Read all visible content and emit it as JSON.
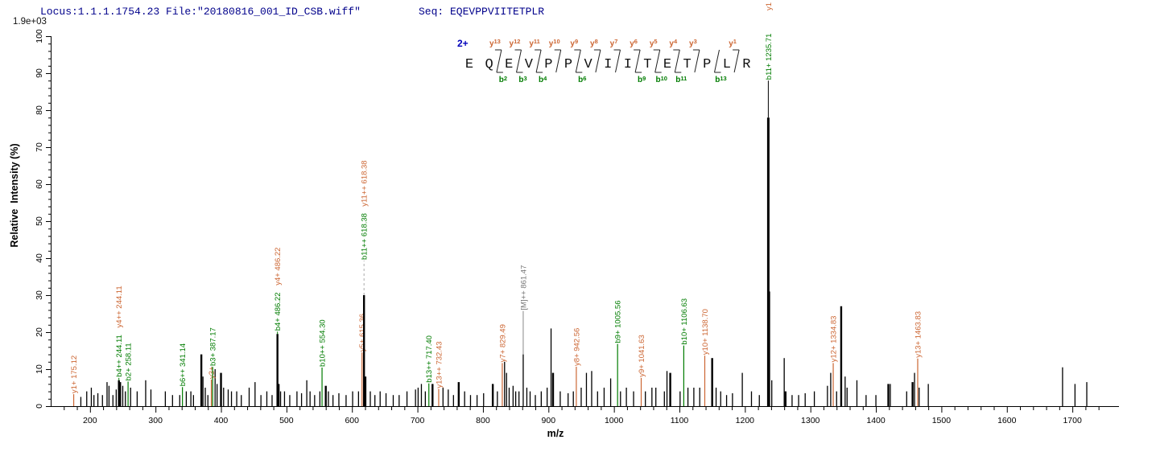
{
  "header": {
    "locus_file": "Locus:1.1.1.1754.23 File:\"20180816_001_ID_CSB.wiff\"",
    "seq_label": "Seq: EQEVPPVIITETPLR",
    "max_intensity": "1.9e+03"
  },
  "colors": {
    "y_ion": "#cc6633",
    "b_ion": "#007c00",
    "precursor": "#777777",
    "peak": "#000000",
    "header_text": "#00008b",
    "charge_text": "#0000bb"
  },
  "sequence": {
    "charge": "2+",
    "residues": [
      "E",
      "Q",
      "E",
      "V",
      "P",
      "P",
      "V",
      "I",
      "I",
      "T",
      "E",
      "T",
      "P",
      "L",
      "R"
    ],
    "y_ions": [
      {
        "label": "y",
        "num": "13",
        "gap": 2
      },
      {
        "label": "y",
        "num": "12",
        "gap": 3
      },
      {
        "label": "y",
        "num": "11",
        "gap": 4
      },
      {
        "label": "y",
        "num": "10",
        "gap": 5
      },
      {
        "label": "y",
        "num": "9",
        "gap": 6
      },
      {
        "label": "y",
        "num": "8",
        "gap": 7
      },
      {
        "label": "y",
        "num": "7",
        "gap": 8
      },
      {
        "label": "y",
        "num": "6",
        "gap": 9
      },
      {
        "label": "y",
        "num": "5",
        "gap": 10
      },
      {
        "label": "y",
        "num": "4",
        "gap": 11
      },
      {
        "label": "y",
        "num": "3",
        "gap": 12
      },
      {
        "label": "y",
        "num": "1",
        "gap": 14
      }
    ],
    "b_ions": [
      {
        "label": "b",
        "num": "2",
        "gap": 2
      },
      {
        "label": "b",
        "num": "3",
        "gap": 3
      },
      {
        "label": "b",
        "num": "4",
        "gap": 4
      },
      {
        "label": "b",
        "num": "6",
        "gap": 6
      },
      {
        "label": "b",
        "num": "9",
        "gap": 9
      },
      {
        "label": "b",
        "num": "10",
        "gap": 10
      },
      {
        "label": "b",
        "num": "11",
        "gap": 11
      },
      {
        "label": "b",
        "num": "13",
        "gap": 13
      }
    ]
  },
  "chart_data": {
    "type": "bar",
    "xlabel": "m/z",
    "ylabel": "Relative  Intensity (%)",
    "xlim": [
      140,
      1765
    ],
    "ylim": [
      0,
      100
    ],
    "x_major_ticks": [
      200,
      300,
      400,
      500,
      600,
      700,
      800,
      900,
      1000,
      1100,
      1200,
      1300,
      1400,
      1500,
      1600,
      1700
    ],
    "x_minor_step": 20,
    "y_major_step": 10,
    "y_minor_step": 2,
    "grid": false,
    "legend": "none",
    "max_intensity_label": "1.9e+03",
    "labeled_peaks": [
      {
        "mz": 175.12,
        "intensity": 1.5,
        "labels": [
          {
            "text": "y1+ 175.12",
            "ion": "y"
          }
        ]
      },
      {
        "mz": 244.11,
        "intensity": 7,
        "w": 2,
        "labels": [
          {
            "text": "b4++ 244.11",
            "ion": "b"
          },
          {
            "text": "y4++ 244.11",
            "ion": "y"
          }
        ]
      },
      {
        "mz": 258.11,
        "intensity": 6,
        "labels": [
          {
            "text": "b2+ 258.11",
            "ion": "b"
          }
        ]
      },
      {
        "mz": 341.14,
        "intensity": 4.5,
        "labels": [
          {
            "text": "b6++ 341.14",
            "ion": "b"
          }
        ]
      },
      {
        "mz": 385.26,
        "intensity": 5,
        "labels": [
          {
            "text": "y3+",
            "ion": "y"
          }
        ]
      },
      {
        "mz": 387.17,
        "intensity": 10,
        "labels": [
          {
            "text": "b3+ 387.17",
            "ion": "b"
          }
        ]
      },
      {
        "mz": 486.22,
        "intensity": 19.5,
        "w": 2,
        "labels": [
          {
            "text": "b4+ 486.22",
            "ion": "b"
          },
          {
            "text": "y4+ 486.22",
            "ion": "y"
          }
        ]
      },
      {
        "mz": 554.3,
        "intensity": 5,
        "labels": [
          {
            "text": "b10++ 554.30",
            "ion": "b"
          }
        ]
      },
      {
        "mz": 615.36,
        "intensity": 8,
        "labels": [
          {
            "text": "y5+ 615.36",
            "ion": "y"
          }
        ]
      },
      {
        "mz": 618.38,
        "intensity": 30,
        "w": 2,
        "labels": [
          {
            "text": "b11++ 618.38",
            "ion": "b"
          },
          {
            "text": "y11++ 618.38",
            "ion": "y"
          }
        ]
      },
      {
        "mz": 717.4,
        "intensity": 5.5,
        "labels": [
          {
            "text": "b13++ 717.40",
            "ion": "b"
          }
        ]
      },
      {
        "mz": 732.43,
        "intensity": 4,
        "labels": [
          {
            "text": "y13++ 732.43",
            "ion": "y"
          }
        ]
      },
      {
        "mz": 829.49,
        "intensity": 11,
        "labels": [
          {
            "text": "y7+ 829.49",
            "ion": "y"
          }
        ]
      },
      {
        "mz": 861.47,
        "intensity": 14,
        "labels": [
          {
            "text": "[M]++ 861.47",
            "ion": "M"
          }
        ]
      },
      {
        "mz": 942.56,
        "intensity": 10,
        "labels": [
          {
            "text": "y8+ 942.56",
            "ion": "y"
          }
        ]
      },
      {
        "mz": 1005.56,
        "intensity": 9,
        "labels": [
          {
            "text": "b9+ 1005.56",
            "ion": "b"
          }
        ]
      },
      {
        "mz": 1041.63,
        "intensity": 7,
        "labels": [
          {
            "text": "y9+ 1041.63",
            "ion": "y"
          }
        ]
      },
      {
        "mz": 1106.63,
        "intensity": 9,
        "labels": [
          {
            "text": "b10+ 1106.63",
            "ion": "b"
          }
        ]
      },
      {
        "mz": 1138.7,
        "intensity": 13,
        "labels": [
          {
            "text": "y10+ 1138.70",
            "ion": "y"
          }
        ]
      },
      {
        "mz": 1235.71,
        "intensity": 78,
        "w": 3,
        "labels": [
          {
            "text": "b11+ 1235.71",
            "ion": "b"
          },
          {
            "text": "y1",
            "ion": "y"
          }
        ]
      },
      {
        "mz": 1334.83,
        "intensity": 11,
        "labels": [
          {
            "text": "y12+ 1334.83",
            "ion": "y"
          }
        ]
      },
      {
        "mz": 1463.83,
        "intensity": 7,
        "labels": [
          {
            "text": "y13+ 1463.83",
            "ion": "y"
          }
        ]
      }
    ],
    "unlabeled_peaks": [
      [
        186,
        2.5
      ],
      [
        195,
        4
      ],
      [
        202,
        5
      ],
      [
        206,
        3
      ],
      [
        212,
        3.5
      ],
      [
        219,
        3
      ],
      [
        226,
        6.5
      ],
      [
        229,
        5.5
      ],
      [
        235,
        3
      ],
      [
        240,
        4.5
      ],
      [
        246,
        6.5,
        2
      ],
      [
        250,
        5.5
      ],
      [
        254,
        4
      ],
      [
        262,
        5
      ],
      [
        272,
        4
      ],
      [
        285,
        7
      ],
      [
        293,
        4.5
      ],
      [
        315,
        4
      ],
      [
        326,
        3
      ],
      [
        337,
        3
      ],
      [
        347,
        4
      ],
      [
        354,
        4
      ],
      [
        358,
        3
      ],
      [
        370,
        14,
        2
      ],
      [
        372.5,
        8
      ],
      [
        376,
        5
      ],
      [
        380,
        3
      ],
      [
        391,
        10
      ],
      [
        394,
        6
      ],
      [
        400,
        9,
        2
      ],
      [
        404,
        5
      ],
      [
        411,
        4.5
      ],
      [
        416,
        4
      ],
      [
        424,
        4
      ],
      [
        431,
        3
      ],
      [
        443,
        5
      ],
      [
        452,
        6.5
      ],
      [
        461,
        3
      ],
      [
        470,
        4
      ],
      [
        478,
        3
      ],
      [
        488,
        6,
        2
      ],
      [
        491,
        4
      ],
      [
        497,
        4
      ],
      [
        505,
        3
      ],
      [
        516,
        4
      ],
      [
        523,
        3.5
      ],
      [
        531,
        7
      ],
      [
        536,
        4
      ],
      [
        543,
        3
      ],
      [
        551,
        4
      ],
      [
        560,
        5.5,
        2
      ],
      [
        564,
        4
      ],
      [
        571,
        3
      ],
      [
        580,
        3.5
      ],
      [
        591,
        3
      ],
      [
        601,
        4
      ],
      [
        610,
        4
      ],
      [
        620.5,
        8,
        2
      ],
      [
        628,
        4
      ],
      [
        635,
        3
      ],
      [
        643,
        4
      ],
      [
        652,
        3.5
      ],
      [
        663,
        3
      ],
      [
        672,
        3
      ],
      [
        684,
        4
      ],
      [
        697,
        4.5
      ],
      [
        701,
        5
      ],
      [
        706,
        6
      ],
      [
        712,
        4
      ],
      [
        723,
        6,
        2
      ],
      [
        739,
        5
      ],
      [
        747,
        4.5
      ],
      [
        755,
        3
      ],
      [
        763,
        6.5,
        2
      ],
      [
        772,
        4
      ],
      [
        781,
        3
      ],
      [
        791,
        3
      ],
      [
        801,
        3.5
      ],
      [
        815,
        6,
        2
      ],
      [
        822,
        4
      ],
      [
        833,
        12
      ],
      [
        836,
        9
      ],
      [
        840,
        5
      ],
      [
        846,
        5.5
      ],
      [
        850,
        4
      ],
      [
        855,
        4
      ],
      [
        867,
        5
      ],
      [
        872,
        4
      ],
      [
        880,
        3
      ],
      [
        889,
        4
      ],
      [
        898,
        5
      ],
      [
        904,
        21
      ],
      [
        907,
        9,
        2
      ],
      [
        918,
        4
      ],
      [
        930,
        3.5
      ],
      [
        938,
        4
      ],
      [
        950,
        5
      ],
      [
        958,
        9
      ],
      [
        966,
        9.5
      ],
      [
        975,
        4
      ],
      [
        985,
        5
      ],
      [
        995,
        7.5
      ],
      [
        1010,
        4
      ],
      [
        1019,
        5
      ],
      [
        1030,
        4
      ],
      [
        1048,
        4
      ],
      [
        1058,
        5
      ],
      [
        1064,
        5
      ],
      [
        1077,
        4
      ],
      [
        1081,
        9.5
      ],
      [
        1086,
        9,
        2
      ],
      [
        1101,
        4
      ],
      [
        1113,
        5
      ],
      [
        1122,
        5
      ],
      [
        1131,
        5
      ],
      [
        1150,
        13,
        2
      ],
      [
        1156,
        5
      ],
      [
        1163,
        4
      ],
      [
        1172,
        3
      ],
      [
        1181,
        3.5
      ],
      [
        1196,
        9
      ],
      [
        1210,
        4
      ],
      [
        1222,
        3
      ],
      [
        1237,
        31,
        2
      ],
      [
        1241,
        7
      ],
      [
        1260,
        13
      ],
      [
        1262,
        4,
        2
      ],
      [
        1272,
        3
      ],
      [
        1282,
        3
      ],
      [
        1292,
        3.5
      ],
      [
        1306,
        4
      ],
      [
        1326,
        5.5
      ],
      [
        1331,
        9
      ],
      [
        1340,
        4
      ],
      [
        1347,
        27,
        2
      ],
      [
        1353,
        8
      ],
      [
        1356,
        5
      ],
      [
        1371,
        7
      ],
      [
        1385,
        3
      ],
      [
        1400,
        3
      ],
      [
        1419,
        6,
        2
      ],
      [
        1422,
        6
      ],
      [
        1447,
        4
      ],
      [
        1456,
        6.5,
        2
      ],
      [
        1459,
        9
      ],
      [
        1466,
        5
      ],
      [
        1480,
        6
      ],
      [
        1685,
        10.5
      ],
      [
        1704,
        6
      ],
      [
        1722,
        6.5
      ]
    ]
  }
}
